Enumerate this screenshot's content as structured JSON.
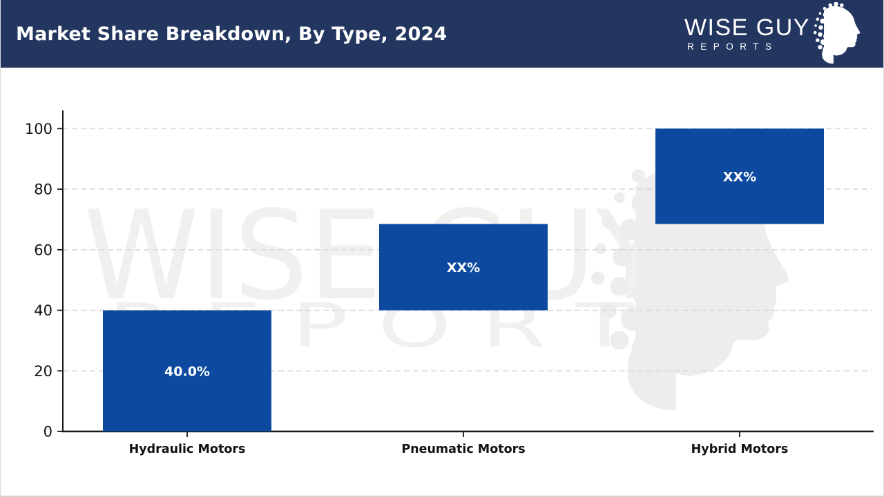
{
  "header": {
    "title": "Market Share Breakdown, By Type, 2024",
    "logo": {
      "line1": "WISE GUY",
      "line2": "REPORTS"
    }
  },
  "watermark": {
    "line1": "WISE GUY",
    "line2": "R E P O R T S"
  },
  "colors": {
    "header_bg": "#22365f",
    "bar": "#0d4a9f",
    "bar_label": "#ffffff",
    "grid": "#d9d9d9",
    "axis": "#1a1a1a",
    "tick_label": "#111111",
    "watermark": "#f0f0f0",
    "watermark_face": "#ededed"
  },
  "chart_data": {
    "type": "bar",
    "variant": "floating-waterfall",
    "title": "Market Share Breakdown, By Type, 2024",
    "categories": [
      "Hydraulic Motors",
      "Pneumatic Motors",
      "Hybrid Motors"
    ],
    "segments": [
      {
        "category": "Hydraulic Motors",
        "from": 0,
        "to": 40,
        "label": "40.0%"
      },
      {
        "category": "Pneumatic Motors",
        "from": 40,
        "to": 68.5,
        "label": "XX%"
      },
      {
        "category": "Hybrid Motors",
        "from": 68.5,
        "to": 100,
        "label": "XX%"
      }
    ],
    "yticks": [
      0,
      20,
      40,
      60,
      80,
      100
    ],
    "ylim": [
      0,
      106
    ],
    "xlabel": "",
    "ylabel": "",
    "grid": {
      "horizontal": true,
      "style": "dashed",
      "vertical": false
    },
    "legend": null
  }
}
